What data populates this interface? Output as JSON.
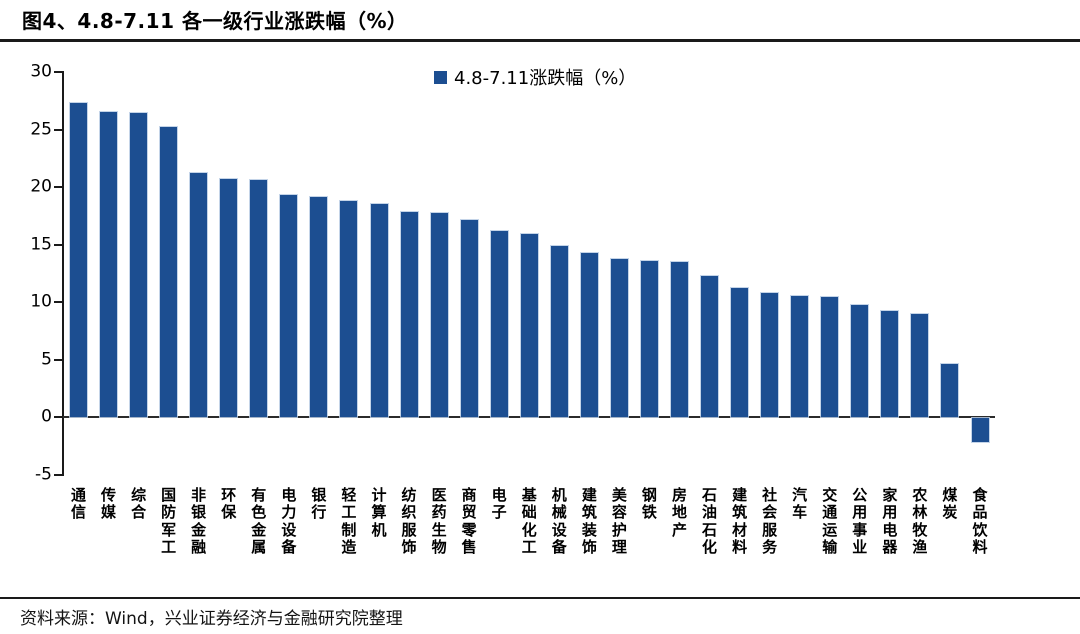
{
  "title": "图4、4.8-7.11 各一级行业涨跌幅（%）",
  "legend": {
    "label": "4.8-7.11涨跌幅（%）"
  },
  "footer": {
    "source": "资料来源：Wind，兴业证券经济与金融研究院整理"
  },
  "colors": {
    "bar": "#1C4E91",
    "bar_edge": "#baccE4",
    "axis": "#1a1a1a"
  },
  "chart_data": {
    "type": "bar",
    "title": "4.8-7.11 各一级行业涨跌幅（%）",
    "legend": [
      "4.8-7.11涨跌幅（%）"
    ],
    "legend_position": "top-center",
    "grid": false,
    "xlabel": "",
    "ylabel": "",
    "ylim": [
      -5,
      30
    ],
    "yticks": [
      30,
      25,
      20,
      15,
      10,
      5,
      0,
      -5
    ],
    "categories": [
      "通信",
      "传媒",
      "综合",
      "国防军工",
      "非银金融",
      "环保",
      "有色金属",
      "电力设备",
      "银行",
      "轻工制造",
      "计算机",
      "纺织服饰",
      "医药生物",
      "商贸零售",
      "电子",
      "基础化工",
      "机械设备",
      "建筑装饰",
      "美容护理",
      "钢铁",
      "房地产",
      "石油石化",
      "建筑材料",
      "社会服务",
      "汽车",
      "交通运输",
      "公用事业",
      "家用电器",
      "农林牧渔",
      "煤炭",
      "食品饮料"
    ],
    "values": [
      27.3,
      26.5,
      26.4,
      25.2,
      21.2,
      20.7,
      20.6,
      19.3,
      19.1,
      18.8,
      18.5,
      17.8,
      17.7,
      17.1,
      16.2,
      15.9,
      14.9,
      14.3,
      13.7,
      13.6,
      13.5,
      12.3,
      11.2,
      10.8,
      10.5,
      10.4,
      9.7,
      9.2,
      9.0,
      4.6,
      -2.1
    ]
  }
}
